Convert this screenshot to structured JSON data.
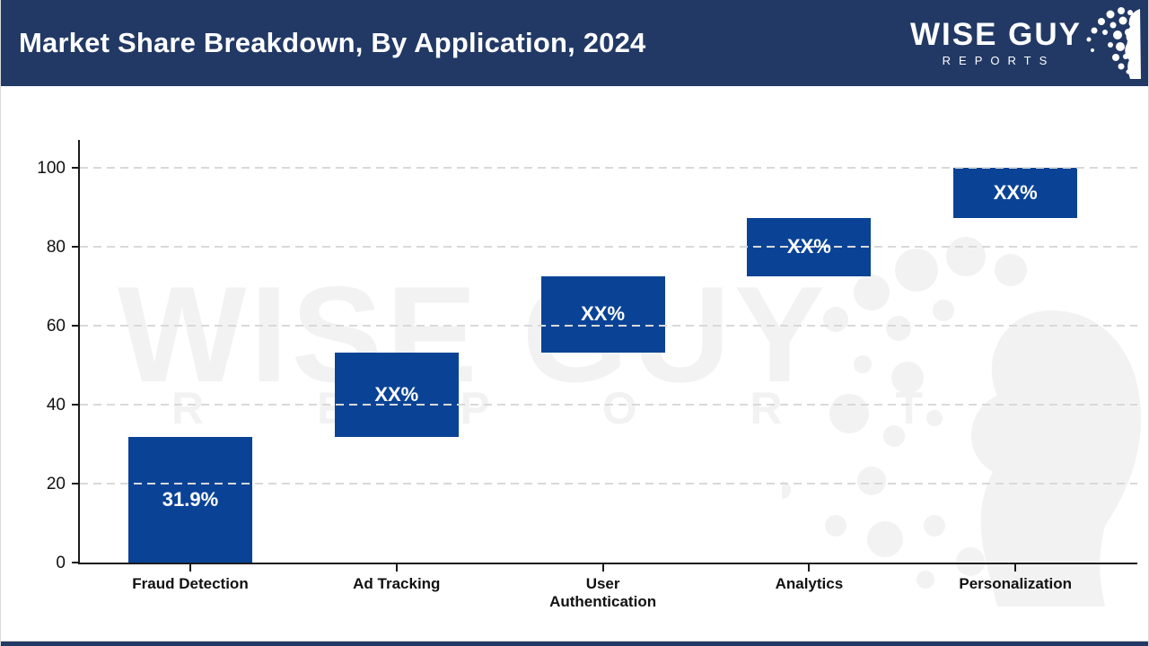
{
  "header": {
    "title": "Market Share Breakdown, By Application, 2024",
    "logo": {
      "line1": "WISE GUY",
      "line2": "REPORTS"
    }
  },
  "watermark": {
    "line1": "WISE GUY",
    "line2": "R E P O R T S"
  },
  "colors": {
    "header_bg": "#223965",
    "footer_bg": "#223965",
    "bar": "#0A4396",
    "bar_label": "#FFFFFF",
    "grid": "#D9D9D9",
    "axis": "#1A1A1A",
    "tick_label": "#111111",
    "watermark": "#F2F2F3"
  },
  "chart_data": {
    "type": "bar",
    "subtype": "waterfall",
    "title": "Market Share Breakdown, By Application, 2024",
    "categories": [
      "Fraud Detection",
      "Ad Tracking",
      "User Authentication",
      "Analytics",
      "Personalization"
    ],
    "segments": [
      {
        "category": "Fraud Detection",
        "start": 0,
        "end": 31.9,
        "label": "31.9%"
      },
      {
        "category": "Ad Tracking",
        "start": 31.9,
        "end": 53.2,
        "label": "XX%"
      },
      {
        "category": "User Authentication",
        "start": 53.2,
        "end": 72.6,
        "label": "XX%"
      },
      {
        "category": "Analytics",
        "start": 72.6,
        "end": 87.3,
        "label": "XX%"
      },
      {
        "category": "Personalization",
        "start": 87.3,
        "end": 100,
        "label": "XX%"
      }
    ],
    "yticks": [
      0,
      20,
      40,
      60,
      80,
      100
    ],
    "ylim": [
      0,
      107
    ],
    "xlabel": "",
    "ylabel": "",
    "legend": "none",
    "grid": "horizontal-dashed",
    "xtick_lines": [
      [
        "Fraud Detection"
      ],
      [
        "Ad Tracking"
      ],
      [
        "User",
        "Authentication"
      ],
      [
        "Analytics"
      ],
      [
        "Personalization"
      ]
    ]
  }
}
